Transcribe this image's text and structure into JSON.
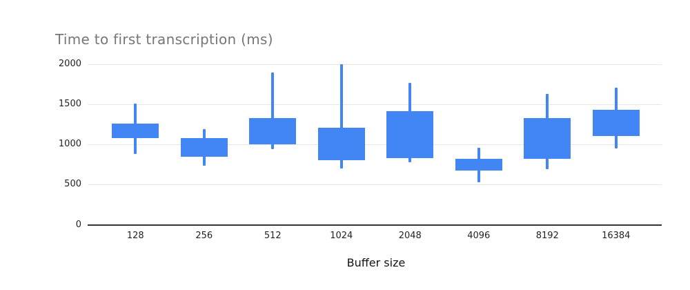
{
  "chart_data": {
    "type": "candlestick",
    "title": "Time to first transcription (ms)",
    "xlabel": "Buffer size",
    "ylabel": "",
    "categories": [
      "128",
      "256",
      "512",
      "1024",
      "2048",
      "4096",
      "8192",
      "16384"
    ],
    "series": [
      {
        "name": "Time to first transcription (ms)",
        "candles": [
          {
            "category": "128",
            "low": 880,
            "open": 1075,
            "close": 1260,
            "high": 1510
          },
          {
            "category": "256",
            "low": 730,
            "open": 845,
            "close": 1080,
            "high": 1190
          },
          {
            "category": "512",
            "low": 940,
            "open": 1000,
            "close": 1325,
            "high": 1890
          },
          {
            "category": "1024",
            "low": 700,
            "open": 805,
            "close": 1210,
            "high": 2000
          },
          {
            "category": "2048",
            "low": 780,
            "open": 830,
            "close": 1410,
            "high": 1760
          },
          {
            "category": "4096",
            "low": 530,
            "open": 670,
            "close": 820,
            "high": 960
          },
          {
            "category": "8192",
            "low": 690,
            "open": 820,
            "close": 1330,
            "high": 1630
          },
          {
            "category": "16384",
            "low": 950,
            "open": 1100,
            "close": 1430,
            "high": 1700
          }
        ]
      }
    ],
    "yticks": [
      0,
      500,
      1000,
      1500,
      2000
    ],
    "ylim": [
      0,
      2000
    ],
    "grid": true,
    "legend": "none",
    "colors": {
      "candle": "#4285f4",
      "gridline": "#e6e6e6",
      "axis_line": "#333333",
      "title_text": "#757575",
      "tick_text": "#222222",
      "xlabel_text": "#111111"
    }
  }
}
